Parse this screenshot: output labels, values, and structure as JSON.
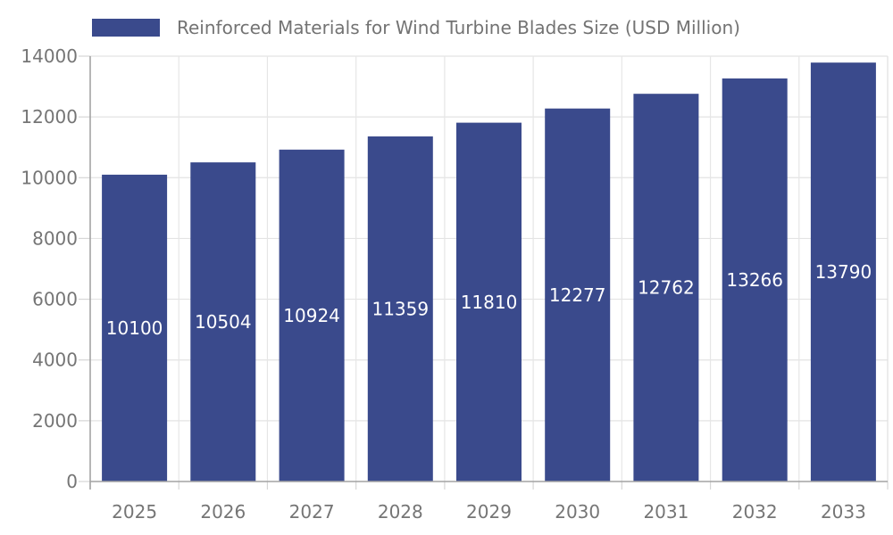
{
  "chart_data": {
    "type": "bar",
    "title": "Reinforced Materials for Wind Turbine Blades Size (USD Million)",
    "categories": [
      "2025",
      "2026",
      "2027",
      "2028",
      "2029",
      "2030",
      "2031",
      "2032",
      "2033"
    ],
    "values": [
      10100,
      10504,
      10924,
      11359,
      11810,
      12277,
      12762,
      13266,
      13790
    ],
    "series": [
      {
        "name": "Reinforced Materials for Wind Turbine Blades Size (USD Million)",
        "values": [
          10100,
          10504,
          10924,
          11359,
          11810,
          12277,
          12762,
          13266,
          13790
        ]
      }
    ],
    "xlabel": "",
    "ylabel": "",
    "ylim": [
      0,
      14000
    ],
    "ytick_step": 2000,
    "ytick_labels": [
      "0",
      "2000",
      "4000",
      "6000",
      "8000",
      "10000",
      "12000",
      "14000"
    ],
    "grid": true,
    "legend_position": "top-left",
    "bar_labels_inside": true
  },
  "colors": {
    "bar": "#3A4A8C",
    "bar_label_text": "#ffffff",
    "grid_line": "#e3e3e3",
    "split_line": "#e6e6e6",
    "plot_border": "#e0e0e0",
    "axis_line": "#a3a3a3",
    "tick_mark": "#d6d6d6",
    "tick_label_text": "#757575",
    "legend_text": "#737373"
  }
}
